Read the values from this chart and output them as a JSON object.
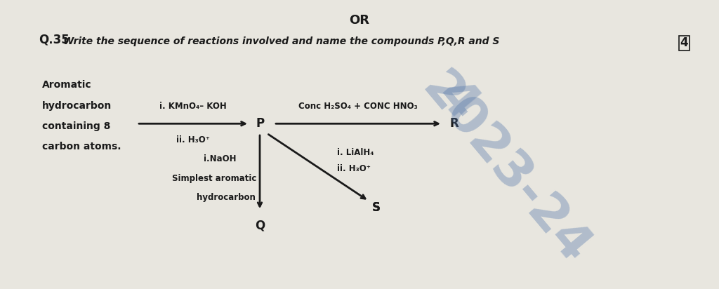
{
  "bg_color": "#e8e6df",
  "title_or": "OR",
  "question_num": "Q.35",
  "question_text": "Write the sequence of reactions involved and name the compounds P,Q,R and S",
  "marks": "4",
  "reactant_lines": [
    "Aromatic",
    "hydrocarbon",
    "containing 8",
    "carbon atoms."
  ],
  "arrow1_label_top": "i. KMnO₄– KOH",
  "arrow1_label_bottom": "ii. H₃O⁺",
  "label_P": "P",
  "arrow2_label_top": "Conc H₂SO₄ + CONC HNO₃",
  "label_R": "R",
  "arrow3_label_left": "i.NaOH",
  "arrow3_label_left2": "Simplest aromatic",
  "arrow3_label_left3": "hydrocarbon",
  "label_Q": "Q",
  "arrow4_label_right": "i. LiAlH₄",
  "arrow4_label_right2": "ii. H₃O⁺",
  "label_S": "S",
  "watermark": "4 2023-24",
  "text_color": "#1a1a1a",
  "arrow_color": "#1a1a1a"
}
